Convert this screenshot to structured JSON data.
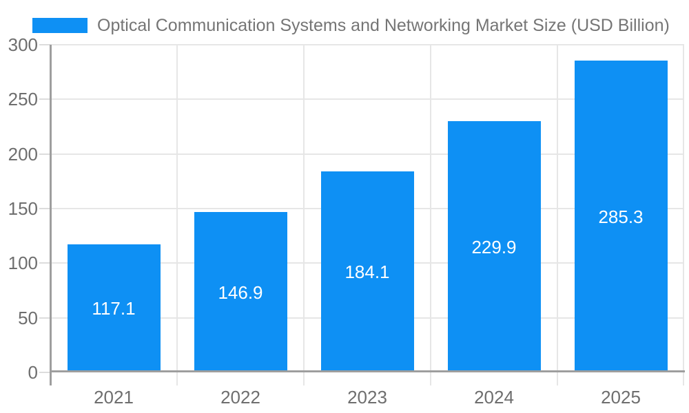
{
  "legend": {
    "label": "Optical Communication Systems and Networking Market Size (USD Billion)"
  },
  "chart_data": {
    "type": "bar",
    "title": "Optical Communication Systems and Networking Market Size (USD Billion)",
    "categories": [
      "2021",
      "2022",
      "2023",
      "2024",
      "2025"
    ],
    "values": [
      117.1,
      146.9,
      184.1,
      229.9,
      285.3
    ],
    "value_labels": [
      "117.1",
      "146.9",
      "184.1",
      "229.9",
      "285.3"
    ],
    "xlabel": "",
    "ylabel": "",
    "ylim": [
      0,
      300
    ],
    "yticks": [
      0,
      50,
      100,
      150,
      200,
      250,
      300
    ],
    "grid": true,
    "legend_position": "top-left",
    "colors": {
      "bar": "#0e90f4",
      "value_label": "#ffffff",
      "axis_text": "#6e6e6e",
      "legend_text": "#757575",
      "gridline": "#e6e6e6",
      "tick": "#dcdcdc",
      "axis_line": "#9e9e9e",
      "background": "#ffffff"
    }
  }
}
